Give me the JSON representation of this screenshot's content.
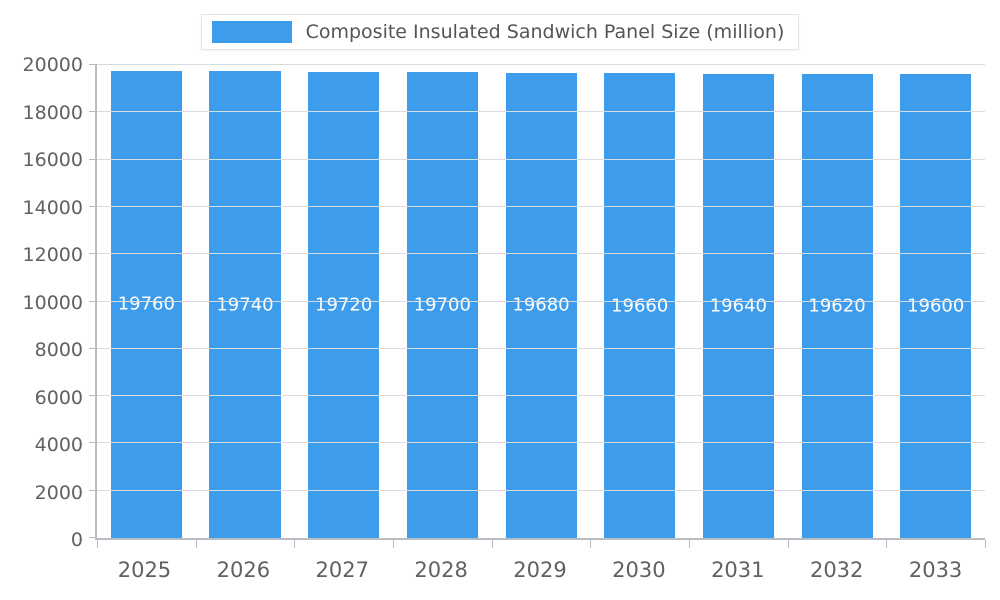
{
  "legend": {
    "label": "Composite Insulated Sandwich Panel Size (million)"
  },
  "colors": {
    "bar": "#3D9CEC",
    "value_label": "#ffffff",
    "grid": "#d7dbde",
    "axis": "#b9bec4",
    "tick_text": "#616161",
    "legend_text": "#555555"
  },
  "chart_data": {
    "type": "bar",
    "title": "Composite Insulated Sandwich Panel Size (million)",
    "categories": [
      "2025",
      "2026",
      "2027",
      "2028",
      "2029",
      "2030",
      "2031",
      "2032",
      "2033"
    ],
    "values": [
      19760,
      19740,
      19720,
      19700,
      19680,
      19660,
      19640,
      19620,
      19600
    ],
    "xlabel": "",
    "ylabel": "",
    "ylim": [
      0,
      20000
    ],
    "ytick_step": 2000,
    "grid": true,
    "legend_position": "top",
    "value_labels_inside_bars": true
  }
}
